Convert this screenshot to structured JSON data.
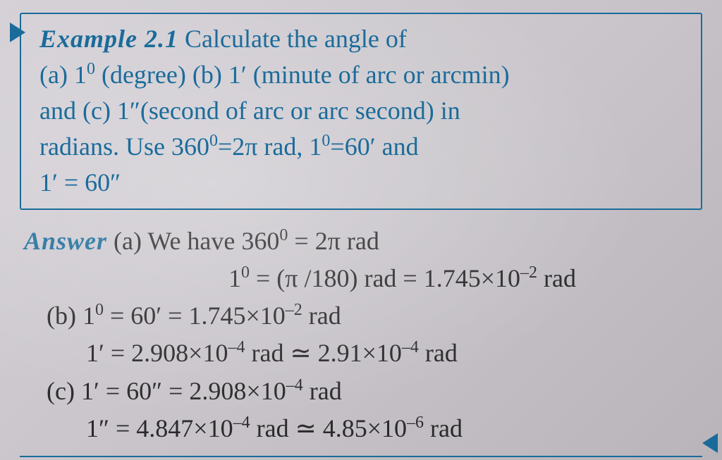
{
  "colors": {
    "accent": "#1a6b9a",
    "body_text": "#2a2a2a",
    "page_bg_start": "#d4d0d6",
    "page_bg_end": "#b8b4ba"
  },
  "typography": {
    "title_fontsize": 36,
    "body_fontsize": 36,
    "sup_fontsize": 24,
    "line_height": 1.45,
    "font_family_title": "Georgia, serif (italic bold)",
    "font_family_body": "Bookman Old Style, Georgia, serif"
  },
  "example": {
    "label": "Example 2.1",
    "prompt_1": " Calculate the angle of",
    "prompt_2": "(a) 1",
    "deg_0": "0",
    "prompt_2b": " (degree) (b) 1′ (minute of arc or arcmin)",
    "prompt_3": "and (c) 1″(second of arc or arc second) in",
    "prompt_4a": "radians. Use 360",
    "prompt_4b": "=2π rad, 1",
    "prompt_4c": "=60′ and",
    "prompt_5": "1′ = 60″"
  },
  "answer": {
    "label": "Answer",
    "a_1a": " (a) We have 360",
    "a_1b": " = 2π rad",
    "a_2a": "1",
    "a_2b": " = (π /180) rad = 1.745×10",
    "a_2c": " rad",
    "exp_m2": "–2",
    "b_1a": "(b) 1",
    "b_1b": " = 60′ = 1.745×10",
    "b_1c": " rad",
    "b_2a": "1′ = 2.908×10",
    "exp_m4": "–4",
    "b_2b": " rad ≃ 2.91×10",
    "b_2c": " rad",
    "c_1a": "(c)  1′ = 60″ = 2.908×10",
    "c_1b": " rad",
    "c_2a": "1″ = 4.847×10",
    "c_2b": " rad ≃ 4.85×10",
    "exp_m6": "–6",
    "c_2c": " rad"
  }
}
